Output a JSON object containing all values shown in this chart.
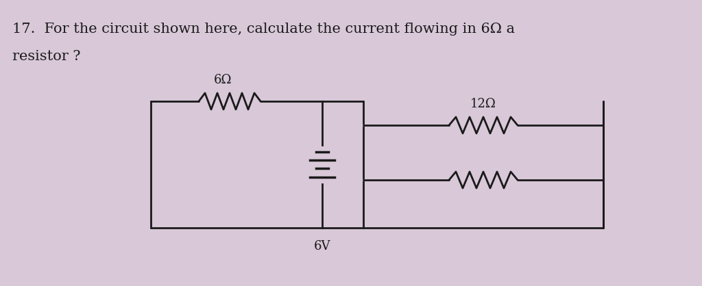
{
  "title_line1": "17.  For the circuit shown here, calculate the current flowing in 6Ω a",
  "title_line2": "resistor ?",
  "bg_color": "#d8c8d8",
  "circuit_color": "#1a1a1a",
  "label_6ohm": "6Ω",
  "label_12ohm": "12Ω",
  "label_battery": "6V",
  "title_fontsize": 15,
  "label_fontsize": 13
}
